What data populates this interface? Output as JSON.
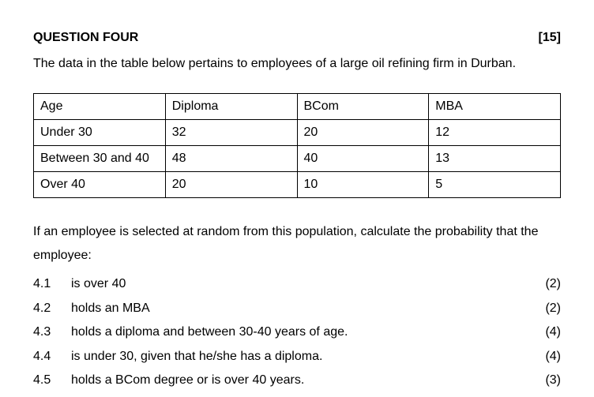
{
  "header": {
    "title": "QUESTION FOUR",
    "total_marks": "[15]"
  },
  "intro": "The data in the table below pertains to employees of a large oil refining firm in Durban.",
  "table": {
    "columns": [
      "Age",
      "Diploma",
      "BCom",
      "MBA"
    ],
    "rows": [
      [
        "Under 30",
        "32",
        "20",
        "12"
      ],
      [
        "Between 30 and 40",
        "48",
        "40",
        "13"
      ],
      [
        "Over 40",
        "20",
        "10",
        "5"
      ]
    ],
    "border_color": "#000000",
    "background_color": "#ffffff",
    "font_size": 16
  },
  "prompt": "If an employee is selected at random from this population, calculate the probability that the employee:",
  "subquestions": [
    {
      "num": "4.1",
      "text": "is over 40",
      "marks": "(2)"
    },
    {
      "num": "4.2",
      "text": "holds an MBA",
      "marks": "(2)"
    },
    {
      "num": "4.3",
      "text": "holds a diploma and between 30-40 years of age.",
      "marks": "(4)"
    },
    {
      "num": "4.4",
      "text": "is under 30, given that he/she has a diploma.",
      "marks": "(4)"
    },
    {
      "num": "4.5",
      "text": "holds a BCom degree or is over 40 years.",
      "marks": "(3)"
    }
  ],
  "styling": {
    "page_background": "#ffffff",
    "text_color": "#000000",
    "font_family": "Arial",
    "body_font_size": 16,
    "title_font_weight": "bold"
  }
}
